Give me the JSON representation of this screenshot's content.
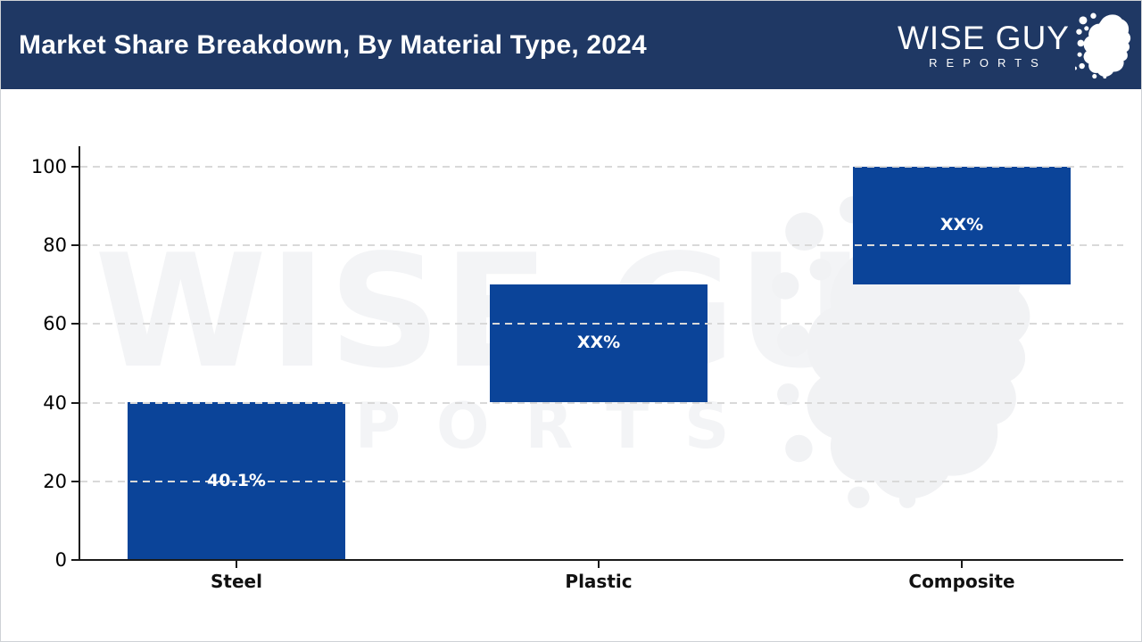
{
  "header": {
    "title": "Market Share Breakdown, By Material Type, 2024",
    "logo": {
      "brand_line1": "WISE GUY",
      "brand_line2": "REPORTS",
      "icon": "face-profile-dots-icon"
    }
  },
  "watermark": {
    "line1": "WISE GUY",
    "line2": "REPORTS",
    "icon": "face-profile-dots-icon"
  },
  "chart_data": {
    "type": "bar",
    "variant": "waterfall-floating-segments",
    "title": "Market Share Breakdown, By Material Type, 2024",
    "categories": [
      "Steel",
      "Plastic",
      "Composite"
    ],
    "bars": [
      {
        "category": "Steel",
        "from": 0,
        "to": 40.1,
        "label": "40.1%"
      },
      {
        "category": "Plastic",
        "from": 40.1,
        "to": 70,
        "label": "XX%"
      },
      {
        "category": "Composite",
        "from": 70,
        "to": 100,
        "label": "XX%"
      }
    ],
    "ylim": [
      0,
      100
    ],
    "yticks": [
      0,
      20,
      40,
      60,
      80,
      100
    ],
    "xlabel": "",
    "ylabel": "",
    "grid": "horizontal-dashed",
    "legend": "none",
    "colors": {
      "bar": "#0b4499",
      "bar_label": "#ffffff",
      "grid": "#d9d9d9",
      "axis": "#1a1a1a",
      "tick_text": "#000000",
      "category_text": "#111111",
      "header_bg": "#1f3864",
      "header_text": "#ffffff",
      "watermark": "#f3f4f6"
    }
  }
}
